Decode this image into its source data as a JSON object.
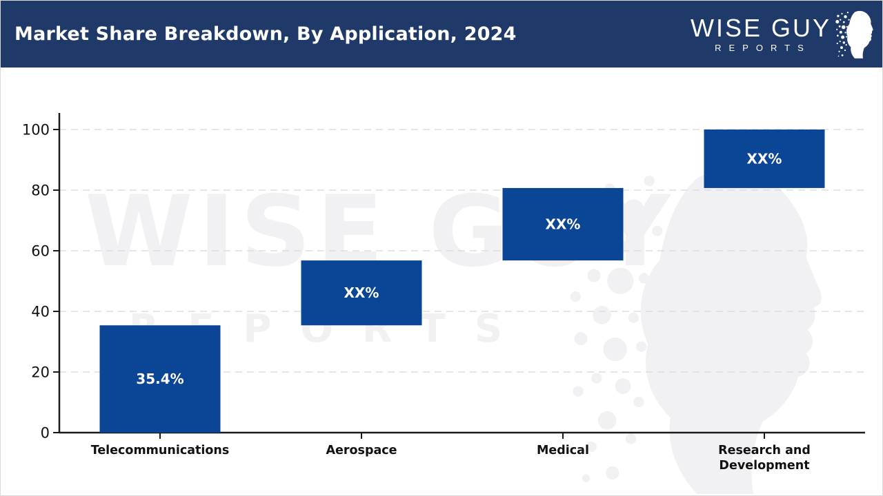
{
  "header": {
    "title": "Market Share Breakdown, By Application, 2024",
    "bg_color": "#1f3a68",
    "logo": {
      "line1": "WISE GUY",
      "line2": "REPORTS"
    }
  },
  "watermark": {
    "line1": "WISE GUY",
    "line2": "REPORTS"
  },
  "chart_data": {
    "type": "bar",
    "subtype": "waterfall",
    "title": "Market Share Breakdown, By Application, 2024",
    "xlabel": "",
    "ylabel": "",
    "ylim": [
      0,
      100
    ],
    "yticks": [
      0,
      20,
      40,
      60,
      80,
      100
    ],
    "grid": "horizontal-dashed",
    "legend": "none",
    "categories": [
      "Telecommunications",
      "Aerospace",
      "Medical",
      "Research and Development"
    ],
    "category_lines": [
      [
        "Telecommunications"
      ],
      [
        "Aerospace"
      ],
      [
        "Medical"
      ],
      [
        "Research and",
        "Development"
      ]
    ],
    "bar_labels": [
      "35.4%",
      "XX%",
      "XX%",
      "XX%"
    ],
    "segments": [
      {
        "category": "Telecommunications",
        "start": 0,
        "end": 35.4,
        "label": "35.4%"
      },
      {
        "category": "Aerospace",
        "start": 35.4,
        "end": 56.8,
        "label": "XX%"
      },
      {
        "category": "Medical",
        "start": 56.8,
        "end": 80.7,
        "label": "XX%"
      },
      {
        "category": "Research and Development",
        "start": 80.7,
        "end": 100,
        "label": "XX%"
      }
    ],
    "bar_color": "#0b4596",
    "grid_color": "#dddddd",
    "axis_color": "#1a1a1a",
    "bar_label_color": "#ffffff",
    "tick_label_color": "#111111"
  },
  "colors": {
    "header_bg": "#1f3a68",
    "watermark": "#f1f1f4",
    "page_border": "#d9d9d9"
  }
}
